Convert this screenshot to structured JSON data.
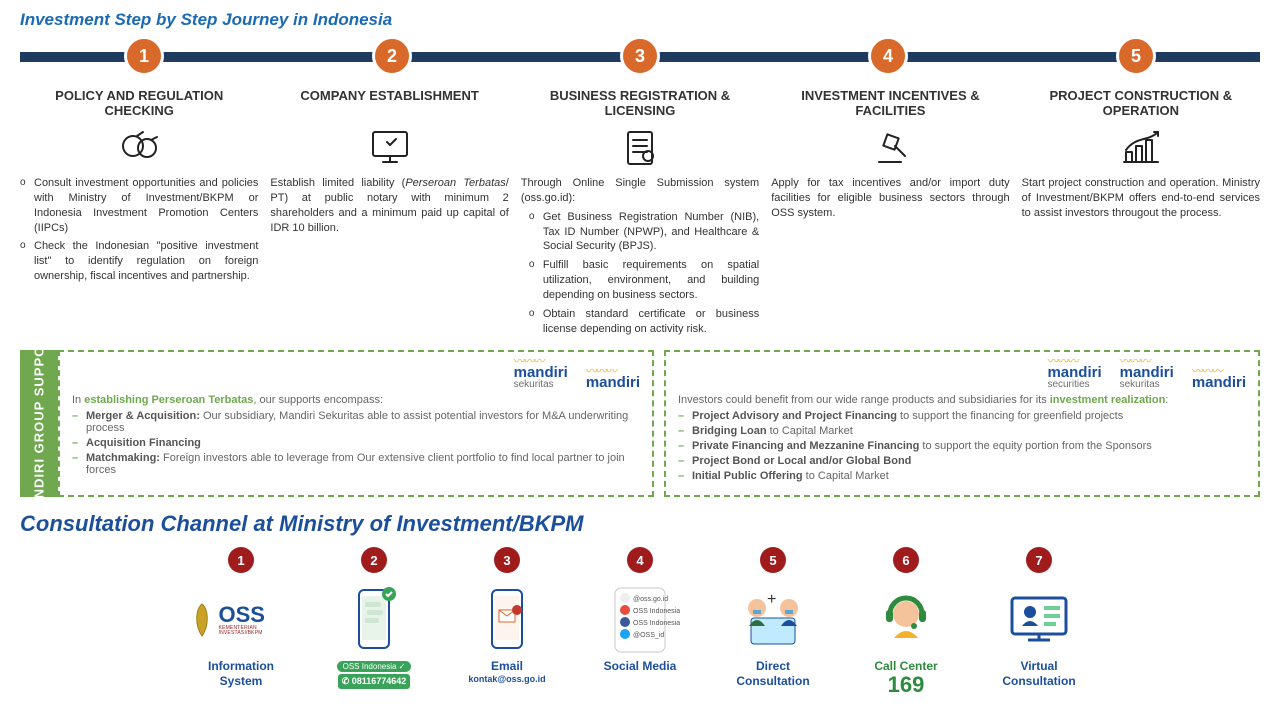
{
  "title_top": "Investment Step by Step Journey in Indonesia",
  "steps": [
    {
      "num": "1",
      "title": "POLICY AND REGULATION CHECKING",
      "body_type": "list",
      "items": [
        "Consult investment opportunities and policies with Ministry of Investment/BKPM or Indonesia Investment Promotion Centers (IIPCs)",
        "Check the Indonesian \"positive investment list\" to identify regulation on foreign ownership, fiscal incentives and partnership."
      ]
    },
    {
      "num": "2",
      "title": "COMPANY ESTABLISHMENT",
      "body_type": "para",
      "para": "Establish limited liability (Perseroan Terbatas/ PT) at public notary with minimum 2 shareholders and a minimum paid up capital of IDR 10 billion."
    },
    {
      "num": "3",
      "title": "BUSINESS REGISTRATION & LICENSING",
      "body_type": "oss",
      "intro": "Through Online Single Submission system (oss.go.id):",
      "items": [
        "Get Business Registration Number (NIB), Tax ID Number (NPWP), and Healthcare & Social Security (BPJS).",
        "Fulfill basic requirements on spatial utilization, environment, and building depending on business sectors.",
        "Obtain standard certificate or business license depending on activity risk."
      ]
    },
    {
      "num": "4",
      "title": "INVESTMENT INCENTIVES & FACILITIES",
      "body_type": "para",
      "para": "Apply for tax incentives and/or import duty facilities for eligible business sectors through OSS system."
    },
    {
      "num": "5",
      "title": "PROJECT CONSTRUCTION & OPERATION",
      "body_type": "para",
      "para": "Start project construction and operation. Ministry of Investment/BKPM offers end-to-end services to assist investors througout the process."
    }
  ],
  "support_label": "MANDIRI GROUP SUPPORT",
  "support_left": {
    "logos": [
      {
        "main": "mandiri",
        "sub": "sekuritas"
      },
      {
        "main": "mandiri",
        "sub": ""
      }
    ],
    "intro_pre": "In ",
    "intro_bold": "establishing Perseroan Terbatas",
    "intro_post": ", our supports encompass:",
    "items": [
      {
        "b": "Merger & Acquisition:",
        "t": " Our subsidiary, Mandiri Sekuritas able to assist potential investors for M&A underwriting process"
      },
      {
        "b": "Acquisition Financing",
        "t": ""
      },
      {
        "b": "Matchmaking:",
        "t": " Foreign investors able to leverage from Our extensive client portfolio to find local partner to join forces"
      }
    ]
  },
  "support_right": {
    "logos": [
      {
        "main": "mandiri",
        "sub": "securities"
      },
      {
        "main": "mandiri",
        "sub": "sekuritas"
      },
      {
        "main": "mandiri",
        "sub": ""
      }
    ],
    "intro_pre": "Investors could benefit from our wide range products and subsidiaries for its ",
    "intro_bold": "investment realization",
    "intro_post": ":",
    "items": [
      {
        "b": "Project Advisory and Project Financing",
        "t": " to support the financing for greenfield projects"
      },
      {
        "b": "Bridging Loan",
        "t": " to Capital Market"
      },
      {
        "b": "Private Financing and Mezzanine Financing",
        "t": " to support the equity portion from the Sponsors"
      },
      {
        "b": "Project Bond or Local and/or Global Bond",
        "t": ""
      },
      {
        "b": "Initial Public Offering",
        "t": " to Capital Market"
      }
    ]
  },
  "title_consult": "Consultation Channel at Ministry of Investment/BKPM",
  "channels": [
    {
      "num": "1",
      "label": "Information System",
      "sub": ""
    },
    {
      "num": "2",
      "label": "",
      "sub": "08116774642",
      "pill": "OSS Indonesia ✓"
    },
    {
      "num": "3",
      "label": "Email",
      "sub": "kontak@oss.go.id"
    },
    {
      "num": "4",
      "label": "Social Media",
      "sub": ""
    },
    {
      "num": "5",
      "label": "Direct Consultation",
      "sub": ""
    },
    {
      "num": "6",
      "label": "Call Center",
      "sub": "169"
    },
    {
      "num": "7",
      "label": "Virtual Consultation",
      "sub": ""
    }
  ],
  "colors": {
    "blue_title": "#1b6ab3",
    "bar": "#1f3a5f",
    "circle": "#d8692a",
    "green": "#6fa84f",
    "consult_red": "#a01c1c",
    "consult_blue": "#1b4f9c"
  }
}
